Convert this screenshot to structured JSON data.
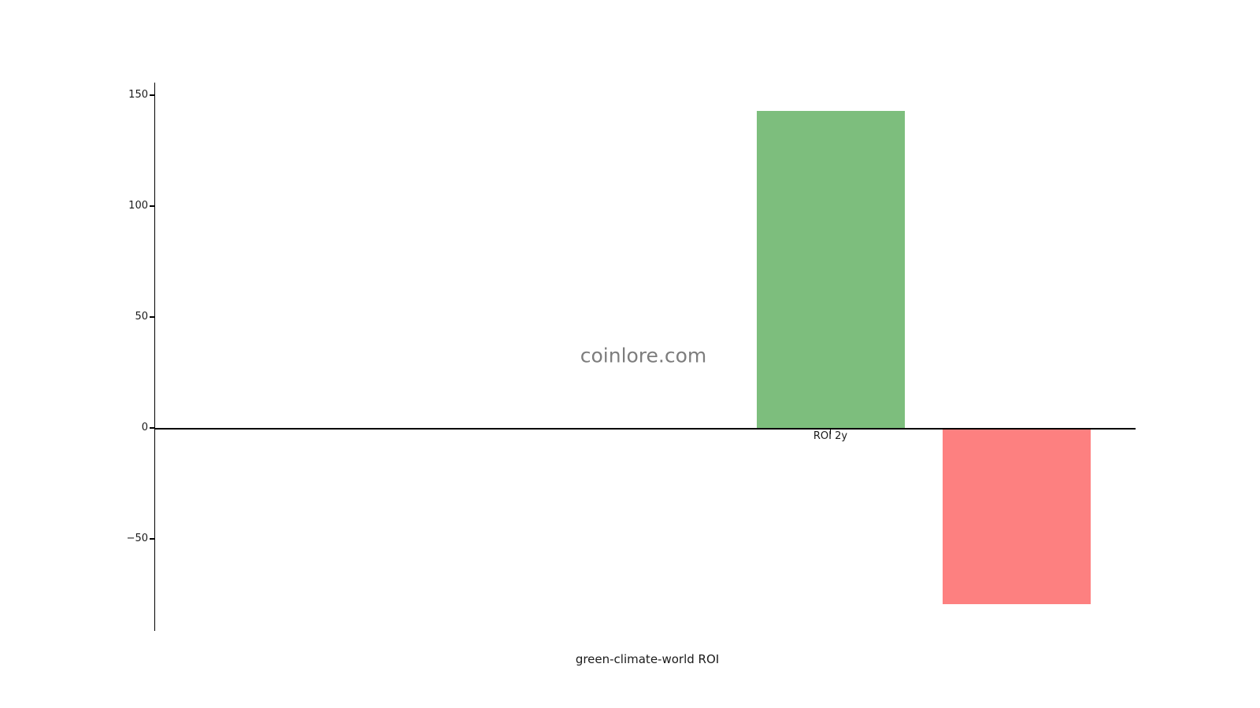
{
  "chart_data": {
    "type": "bar",
    "title": "green-climate-world ROI",
    "watermark": "coinlore.com",
    "categories": [
      "ROI 2y",
      ""
    ],
    "values": [
      143,
      -79
    ],
    "series": [
      {
        "name": "ROI",
        "values": [
          143,
          -79
        ]
      }
    ],
    "bar_colors": [
      "#7dbe7d",
      "#fd8080"
    ],
    "yticks": [
      150,
      100,
      50,
      0,
      -50
    ],
    "ylim": [
      -91,
      156
    ],
    "xlabel": "",
    "ylabel": "",
    "grid": false,
    "legend_position": "none",
    "axis_color": "#000000",
    "text_color": "#1a1a1a",
    "watermark_color": "#7d7d7d"
  }
}
